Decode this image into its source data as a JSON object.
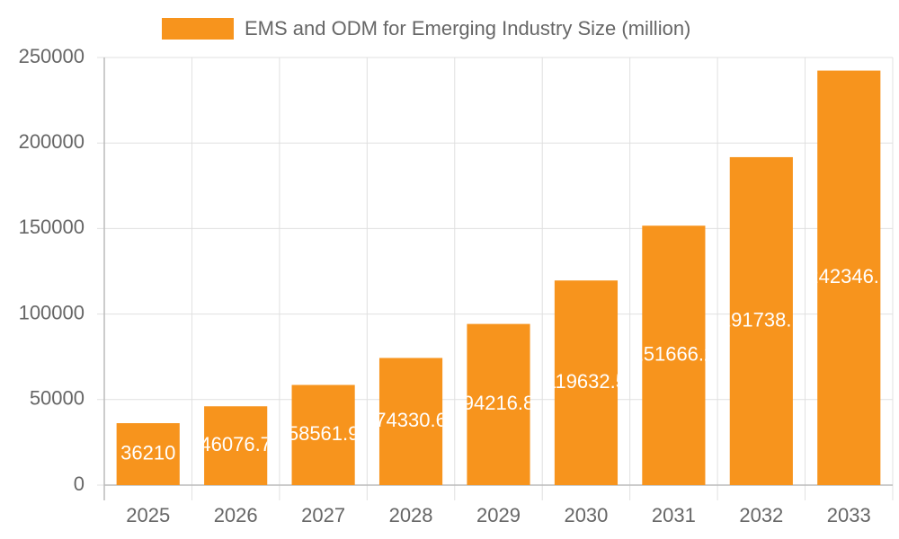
{
  "chart_data": {
    "type": "bar",
    "legend_label": "EMS and ODM for Emerging Industry Size (million)",
    "categories": [
      "2025",
      "2026",
      "2027",
      "2028",
      "2029",
      "2030",
      "2031",
      "2032",
      "2033"
    ],
    "values": [
      36210,
      46076.7,
      58561.9,
      74330.6,
      94216.8,
      119632.5,
      151666.2,
      191738.1,
      242346.1
    ],
    "color": "#f7941d",
    "ylim": [
      0,
      250000
    ],
    "yticks": [
      0,
      50000,
      100000,
      150000,
      200000,
      250000
    ],
    "grid": true,
    "legend_position": "top"
  }
}
